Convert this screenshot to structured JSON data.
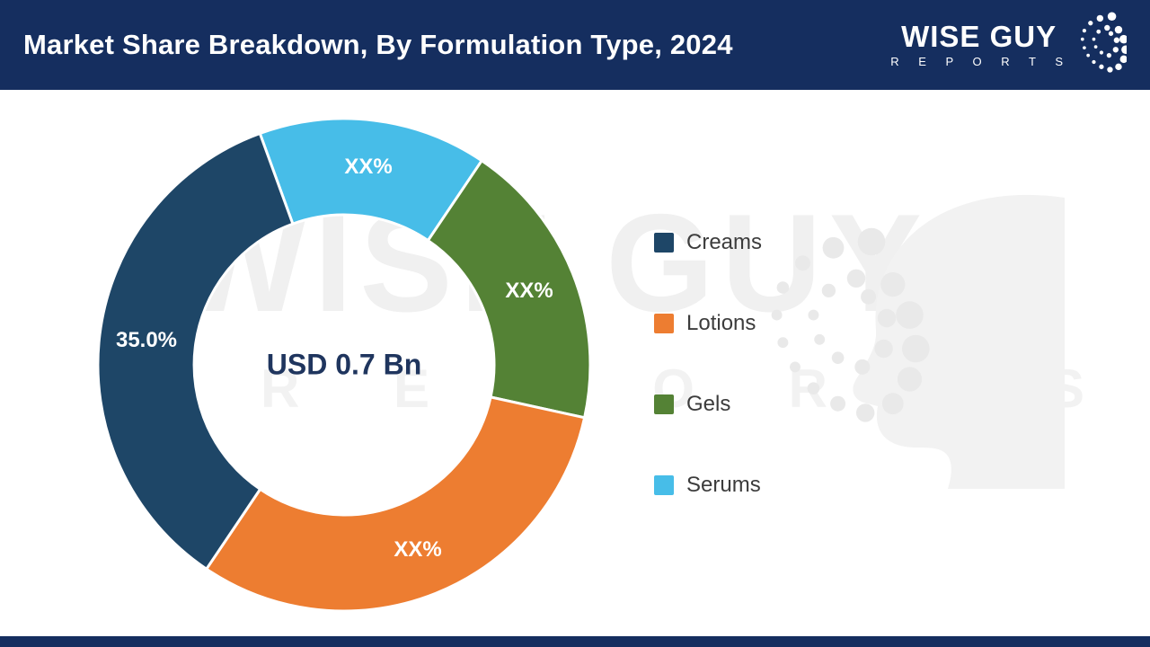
{
  "header": {
    "title": "Market Share Breakdown, By Formulation Type, 2024",
    "logo": {
      "line1": "WISE GUY",
      "line2": "R E P O R T S"
    }
  },
  "watermark": {
    "line1": "WISE GUY",
    "line2": "R E P O R T S"
  },
  "chart_data": {
    "type": "pie",
    "subtype": "donut",
    "title": "Market Share Breakdown, By Formulation Type, 2024",
    "center_label": "USD 0.7 Bn",
    "start_angle_deg": -20,
    "inner_radius_ratio": 0.61,
    "legend_position": "right",
    "segments": [
      {
        "label": "Serums",
        "value": 15,
        "display": "XX%",
        "color": "#47bde8"
      },
      {
        "label": "Gels",
        "value": 19,
        "display": "XX%",
        "color": "#548235"
      },
      {
        "label": "Lotions",
        "value": 31,
        "display": "XX%",
        "color": "#ed7d31"
      },
      {
        "label": "Creams",
        "value": 35,
        "display": "35.0%",
        "color": "#1e4667"
      }
    ],
    "legend": [
      "Creams",
      "Lotions",
      "Gels",
      "Serums"
    ]
  },
  "colors": {
    "header_bg": "#152e5f",
    "footer_bg": "#152e5f",
    "watermark": "#f0f0f0",
    "legend_text": "#3c3c3c",
    "center_text": "#1f355e"
  }
}
